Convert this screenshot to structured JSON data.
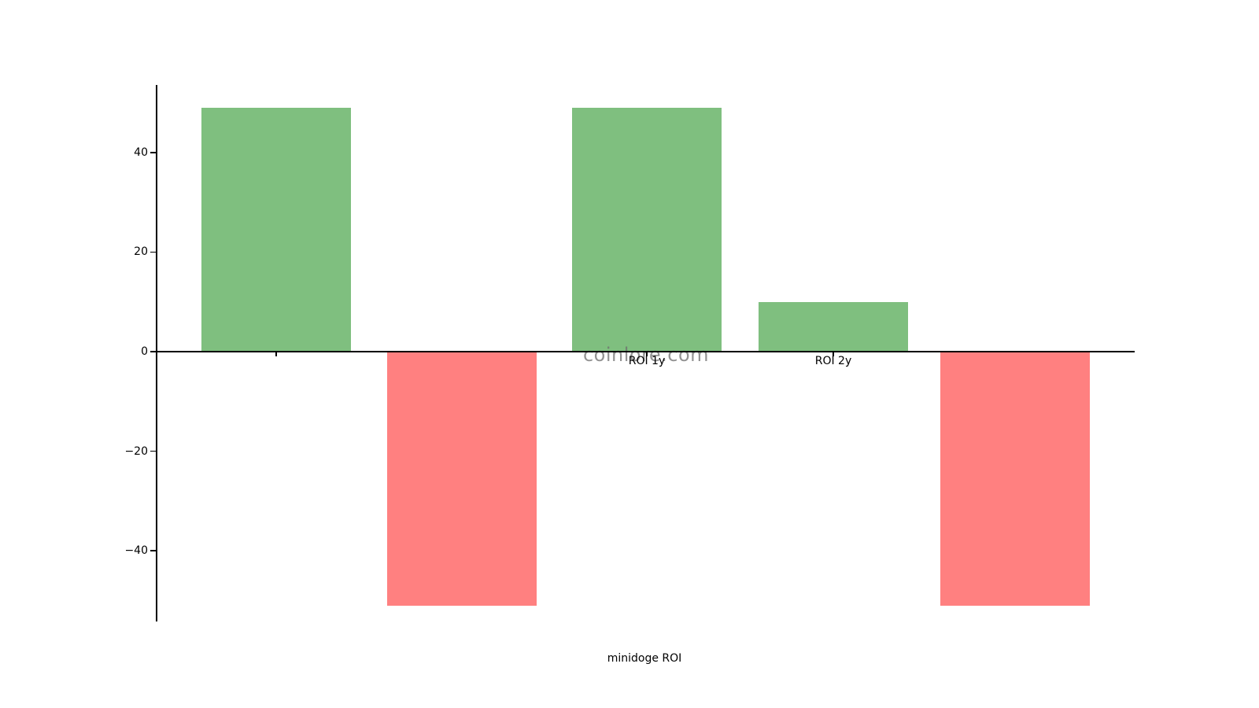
{
  "page": {
    "background_color": "#ffffff"
  },
  "chart_data": {
    "type": "bar",
    "categories": [
      "",
      "",
      "ROI 1y",
      "ROI 2y",
      ""
    ],
    "values": [
      49,
      -51,
      49,
      10,
      -51
    ],
    "bar_colors": [
      "#7fbf7f",
      "#ff8080",
      "#7fbf7f",
      "#7fbf7f",
      "#ff8080"
    ],
    "positive_color": "#7fbf7f",
    "negative_color": "#ff8080",
    "title": "",
    "xlabel": "minidoge ROI",
    "ylabel": "",
    "ylim": [
      -54,
      54
    ],
    "yticks": {
      "values": [
        40,
        20,
        0,
        -20,
        -40
      ],
      "labels": [
        "40",
        "20",
        "0",
        "−20",
        "−40"
      ]
    },
    "xticks_shown_at": [
      0,
      2,
      3
    ],
    "grid": false,
    "legend": null,
    "axis_color": "#000000",
    "watermark": "coinlore.com",
    "watermark_color": "#6e6e6e"
  }
}
